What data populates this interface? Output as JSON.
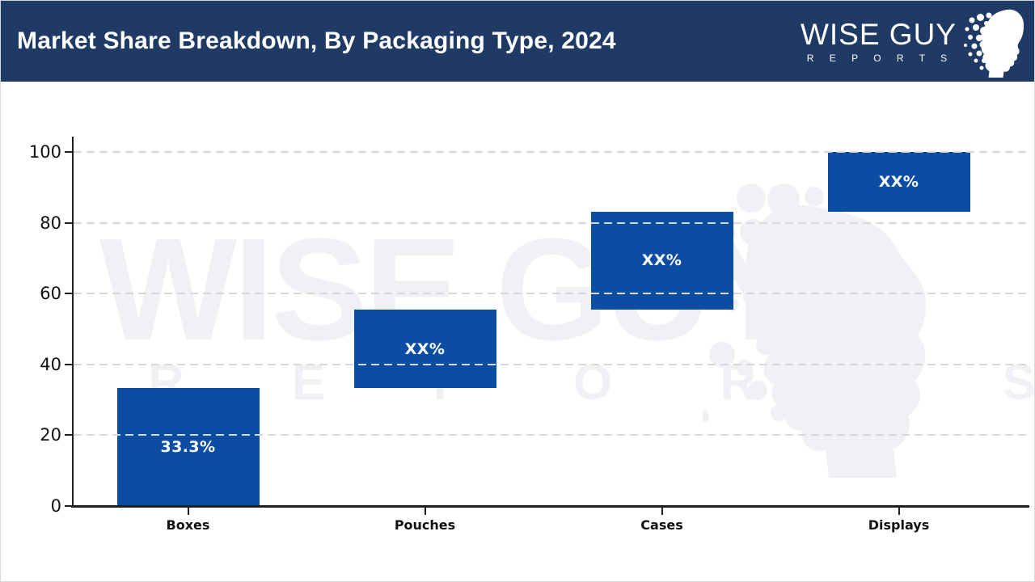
{
  "header": {
    "title": "Market Share Breakdown, By Packaging Type, 2024",
    "logo": {
      "line1": "WISE GUY",
      "line2": "R E P O R T S",
      "face_icon": "head-profile-dots"
    }
  },
  "watermark": {
    "line1": "WISE GUY",
    "line2": "R E P O R T S",
    "face_icon": "head-profile-dots"
  },
  "colors": {
    "header_bg": "#203a66",
    "bar": "#0b4da2",
    "grid": "#d8d8d8",
    "axis": "#1f1f1f",
    "watermark": "#f0f1f4",
    "label_on_bar": "#ffffff"
  },
  "chart_data": {
    "type": "bar",
    "subtype": "waterfall",
    "title": "Market Share Breakdown, By Packaging Type, 2024",
    "categories": [
      "Boxes",
      "Pouches",
      "Cases",
      "Displays"
    ],
    "segments": [
      {
        "category": "Boxes",
        "start": 0,
        "end": 33.3,
        "label": "33.3%"
      },
      {
        "category": "Pouches",
        "start": 33.3,
        "end": 55.4,
        "label": "XX%"
      },
      {
        "category": "Cases",
        "start": 55.4,
        "end": 83.2,
        "label": "XX%"
      },
      {
        "category": "Displays",
        "start": 83.2,
        "end": 100,
        "label": "XX%"
      }
    ],
    "yticks": [
      0,
      20,
      40,
      60,
      80,
      100
    ],
    "ylim": [
      0,
      104
    ],
    "xlabel": "",
    "ylabel": "",
    "grid": "dashed-horizontal",
    "legend": "none"
  }
}
